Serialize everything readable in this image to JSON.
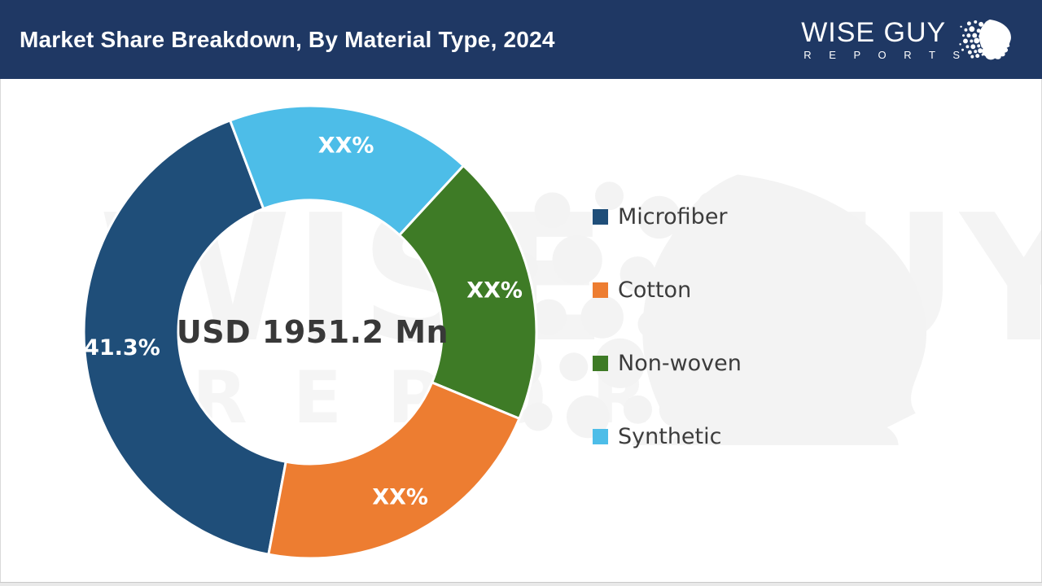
{
  "header": {
    "title": "Market Share Breakdown, By Material Type, 2024",
    "logo": {
      "line1": "WISE GUY",
      "line2": "R E P O R T S"
    }
  },
  "watermark": {
    "line1": "WISE GUY",
    "line2": "REPORTS"
  },
  "chart_data": {
    "type": "pie",
    "subtype": "donut",
    "title": "Market Share Breakdown, By Material Type, 2024",
    "center_label": "USD 1951.2 Mn",
    "start_angle_deg": 190.6,
    "direction": "clockwise",
    "outer_radius_px": 278,
    "inner_radius_px": 162,
    "segments": [
      {
        "name": "Microfiber",
        "label": "41.3%",
        "percent": 41.3,
        "color": "#1F4E79"
      },
      {
        "name": "Synthetic",
        "label": "XX%",
        "percent": 17.6,
        "color": "#4DBDE8"
      },
      {
        "name": "Non-woven",
        "label": "XX%",
        "percent": 19.4,
        "color": "#3E7B26"
      },
      {
        "name": "Cotton",
        "label": "XX%",
        "percent": 21.7,
        "color": "#ED7D31"
      }
    ],
    "legend_order": [
      "Microfiber",
      "Cotton",
      "Non-woven",
      "Synthetic"
    ],
    "legend_position": "right"
  }
}
